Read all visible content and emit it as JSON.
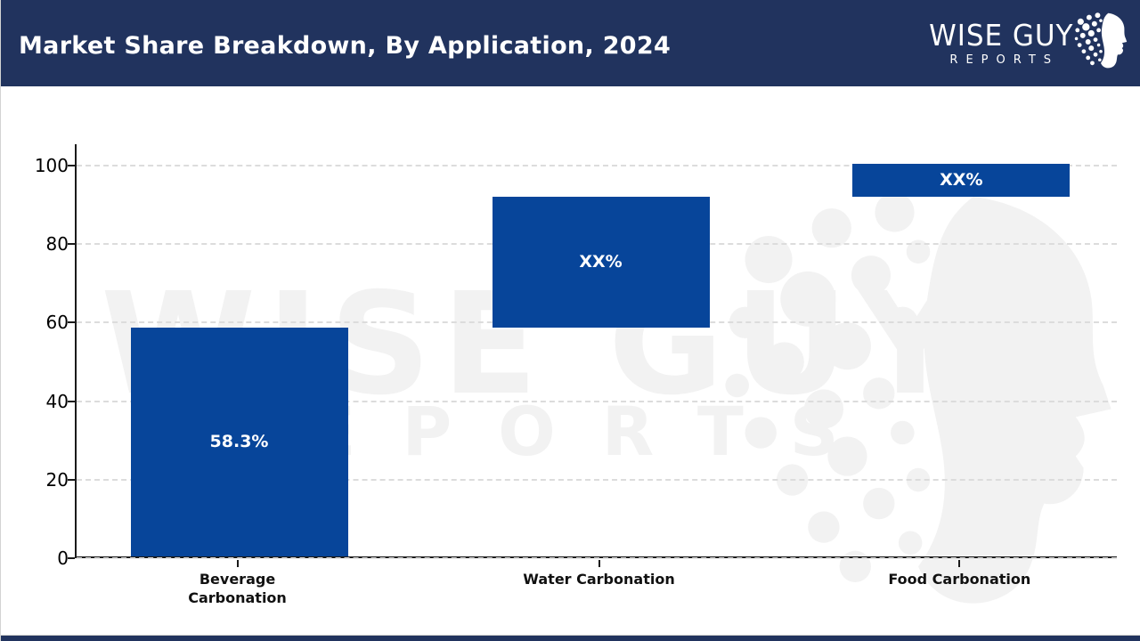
{
  "header": {
    "title": "Market Share Breakdown, By Application, 2024",
    "logo": {
      "line1": "WISE GUY",
      "line2": "REPORTS"
    }
  },
  "watermark": {
    "line1": "WISE GUY",
    "line2": "REPORTS"
  },
  "chart_data": {
    "type": "bar",
    "subtype": "stacked-waterfall",
    "title": "Market Share Breakdown, By Application, 2024",
    "categories": [
      "Beverage Carbonation",
      "Water Carbonation",
      "Food Carbonation"
    ],
    "categories_lines": [
      [
        "Beverage",
        "Carbonation"
      ],
      [
        "Water Carbonation"
      ],
      [
        "Food Carbonation"
      ]
    ],
    "segments": [
      {
        "category": "Beverage Carbonation",
        "label": "58.3%",
        "value": 58.3,
        "start": 0,
        "end": 58.3
      },
      {
        "category": "Water Carbonation",
        "label": "XX%",
        "value": 33.4,
        "start": 58.3,
        "end": 91.7
      },
      {
        "category": "Food Carbonation",
        "label": "XX%",
        "value": 8.3,
        "start": 91.7,
        "end": 100
      }
    ],
    "ylim": [
      0,
      100
    ],
    "yticks": [
      0,
      20,
      40,
      60,
      80,
      100
    ],
    "ytick_labels": [
      "0",
      "20",
      "40",
      "60",
      "80",
      "100"
    ],
    "xlabel": "",
    "ylabel": "",
    "grid": "horizontal-dashed",
    "legend": "none",
    "bar_color": "#07459A",
    "bar_label_color": "#ffffff",
    "header_bg_color": "#21335E",
    "watermark_color": "#f2f2f2"
  }
}
